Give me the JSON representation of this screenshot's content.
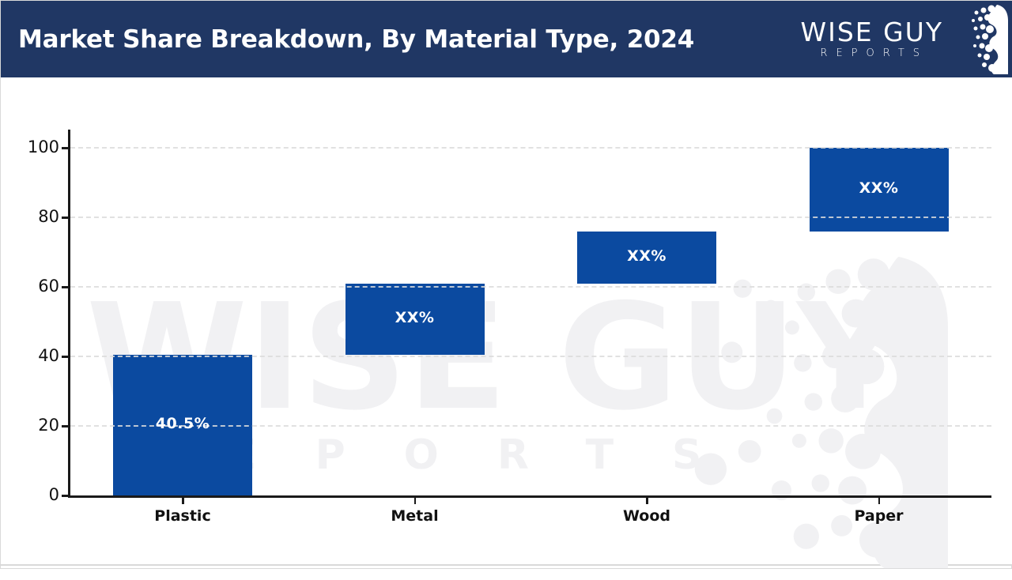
{
  "header": {
    "title": "Market Share Breakdown, By Material Type, 2024",
    "logo": {
      "brand_line1": "WISE GUY",
      "brand_line2": "REPORTS"
    }
  },
  "watermark": {
    "line1": "WISE GUY",
    "line2": "REPORTS"
  },
  "theme": {
    "header_bg": "#203764",
    "bar_color": "#0b4aa0",
    "bar_label_color": "#ffffff",
    "axis_color": "#1a1a1a",
    "grid_color": "#dcdcdc",
    "watermark_color": "#f1f1f3",
    "page_border_color": "#d9d9d9"
  },
  "chart_data": {
    "type": "bar",
    "subtype": "waterfall",
    "title": "Market Share Breakdown, By Material Type, 2024",
    "categories": [
      "Plastic",
      "Metal",
      "Wood",
      "Paper"
    ],
    "series": [
      {
        "name": "Market share (%)",
        "starts": [
          0,
          40.5,
          61,
          76
        ],
        "ends": [
          40.5,
          61,
          76,
          100
        ],
        "segment_values": [
          40.5,
          20.5,
          15,
          24
        ],
        "labels": [
          "40.5%",
          "XX%",
          "XX%",
          "XX%"
        ]
      }
    ],
    "xlabel": "",
    "ylabel": "",
    "yticks": [
      0,
      20,
      40,
      60,
      80,
      100
    ],
    "ylim": [
      0,
      105
    ],
    "grid": "horizontal-dashed-over-bars",
    "legend": "none"
  }
}
